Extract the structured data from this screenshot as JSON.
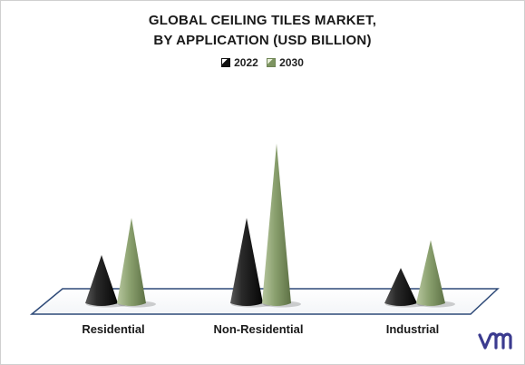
{
  "chart_data": {
    "type": "bar",
    "title_lines": [
      "GLOBAL CEILING TILES MARKET,",
      "BY APPLICATION (USD BILLION)"
    ],
    "categories": [
      "Residential",
      "Non-Residential",
      "Industrial"
    ],
    "series": [
      {
        "name": "2022",
        "values": [
          2.6,
          4.6,
          1.9
        ],
        "color": "#222222"
      },
      {
        "name": "2030",
        "values": [
          4.6,
          8.6,
          3.4
        ],
        "color": "#8a9f6e"
      }
    ],
    "ylim": [
      0,
      9
    ],
    "legend_position": "top-center",
    "grid": false
  },
  "brand": {
    "logo_name": "mrfr-logo",
    "color": "#3b3b8f"
  }
}
